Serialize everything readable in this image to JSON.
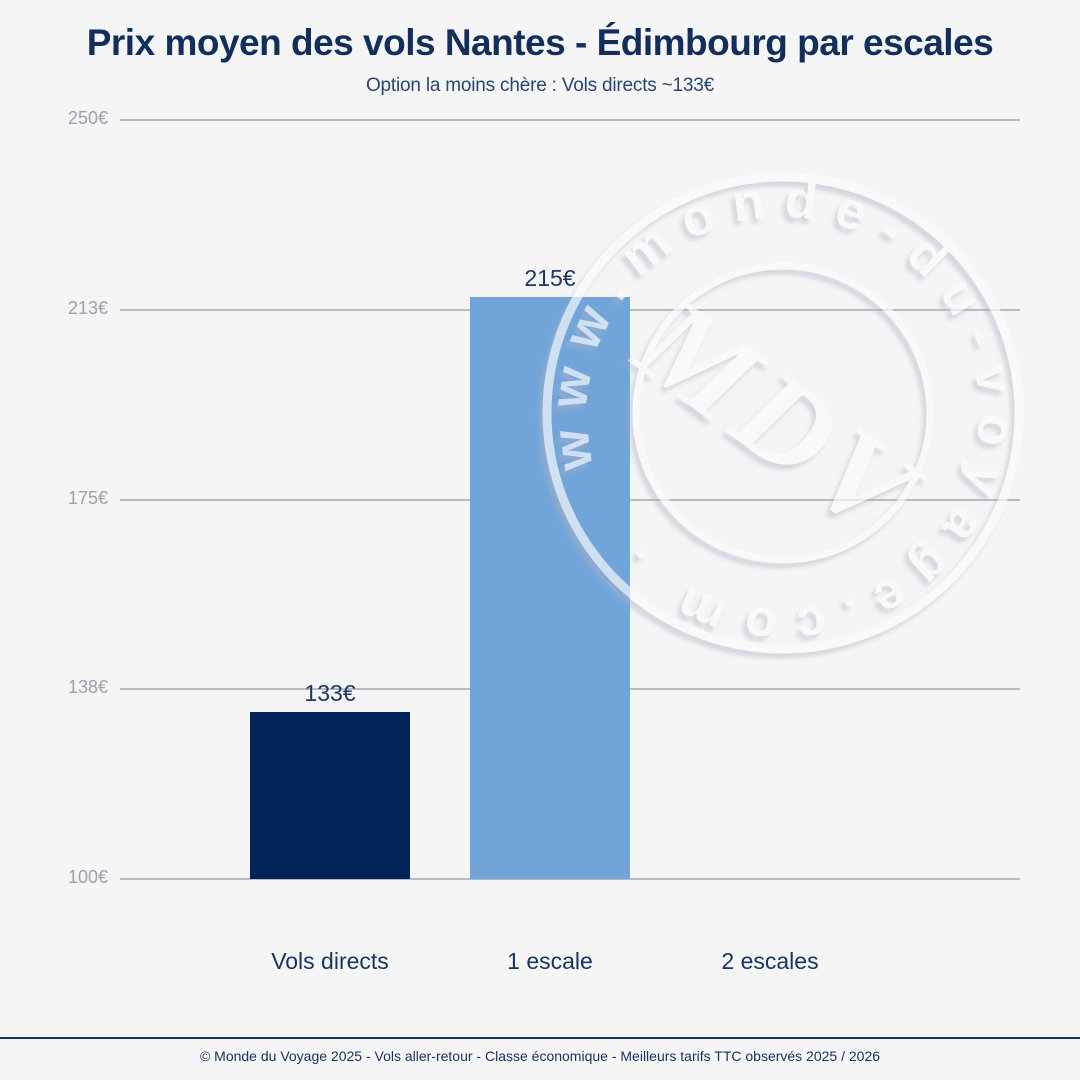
{
  "header": {
    "title": "Prix moyen des vols Nantes - Édimbourg par escales",
    "subtitle": "Option la moins chère : Vols directs ~133€"
  },
  "chart_data": {
    "type": "bar",
    "title": "Prix moyen des vols Nantes - Édimbourg par escales",
    "subtitle": "Option la moins chère : Vols directs ~133€",
    "categories": [
      "Vols directs",
      "1 escale",
      "2 escales"
    ],
    "values": [
      133,
      215,
      null
    ],
    "value_labels": [
      "133€",
      "215€",
      ""
    ],
    "bar_colors": [
      "#01235a",
      "#71a5da",
      "#71a5da"
    ],
    "ylim": [
      100,
      250
    ],
    "yticks": [
      {
        "value": 250,
        "label": "250€"
      },
      {
        "value": 212.5,
        "label": "213€"
      },
      {
        "value": 175,
        "label": "175€"
      },
      {
        "value": 137.5,
        "label": "138€"
      },
      {
        "value": 100,
        "label": "100€"
      }
    ],
    "grid": true,
    "legend": false,
    "xlabel": "",
    "ylabel": ""
  },
  "watermark": {
    "circular_text": "www.monde-du-voyage.com .",
    "center_text": "MDV"
  },
  "footer": {
    "text": "© Monde du Voyage 2025 - Vols aller-retour - Classe économique - Meilleurs tarifs TTC observés 2025 / 2026"
  },
  "colors": {
    "background": "#f5f5f6",
    "title_navy": "#122f5c",
    "bar_navy": "#01235a",
    "bar_blue": "#71a5da",
    "grid_gray": "#b7bbc5",
    "axis_tick_gray": "#9aa1af"
  }
}
